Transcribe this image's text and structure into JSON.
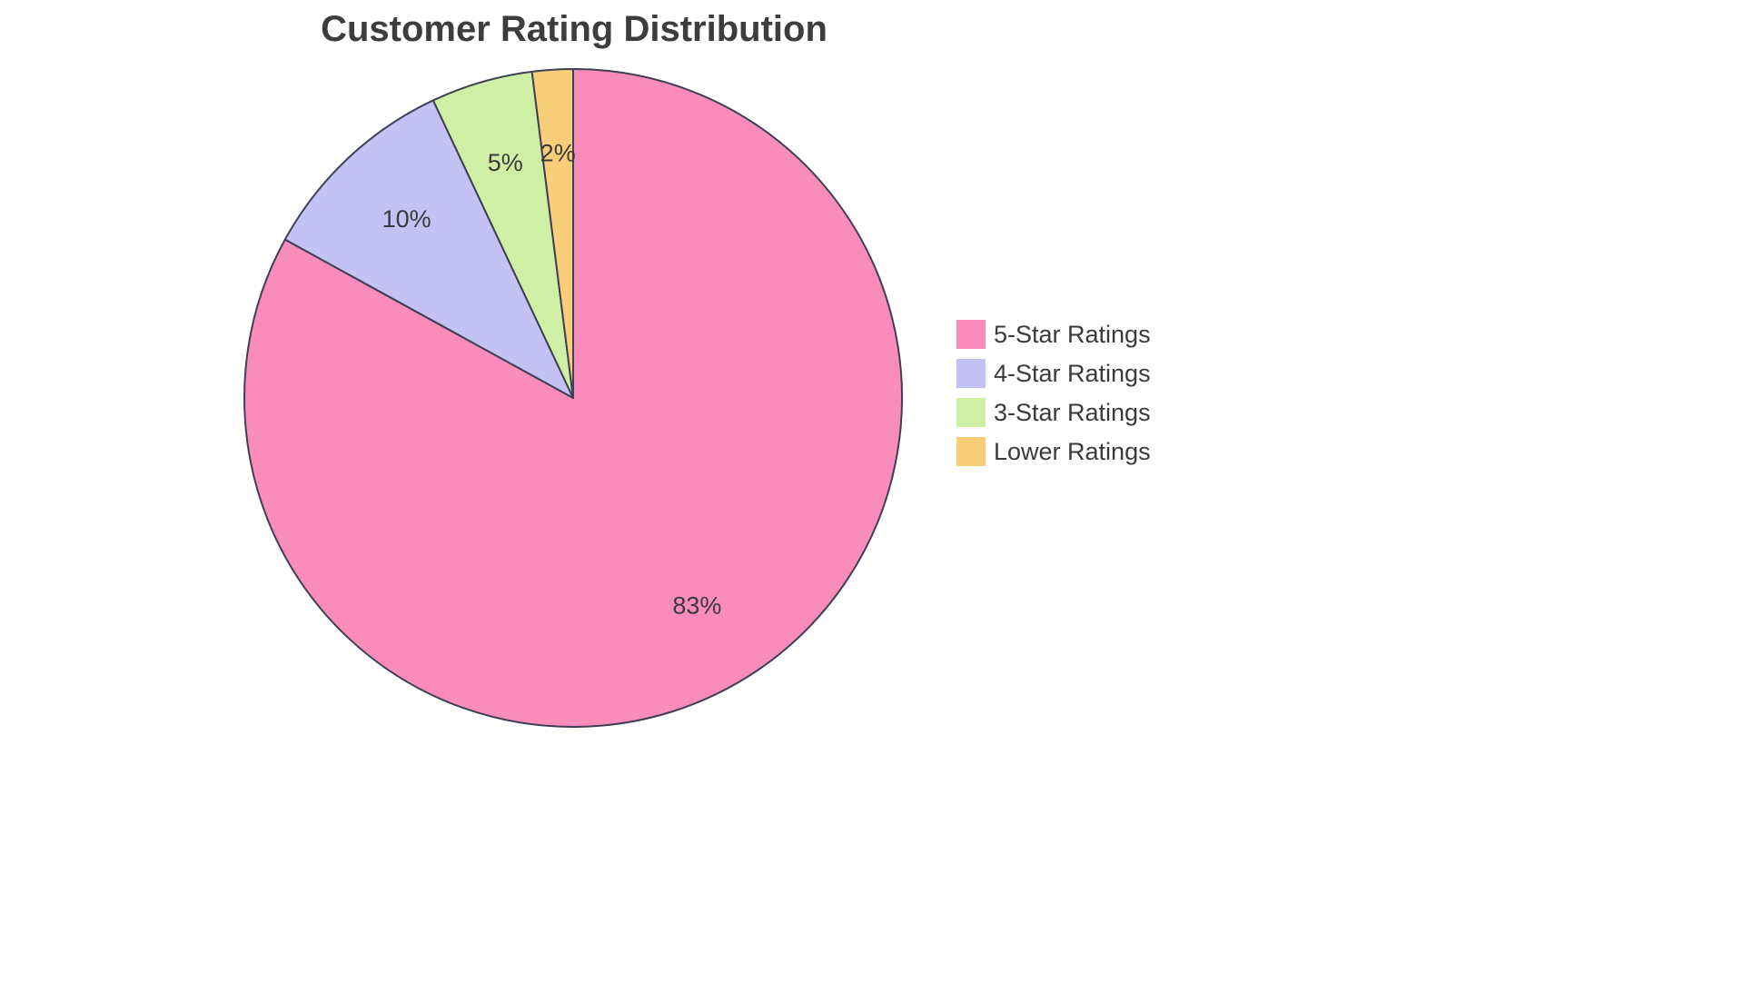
{
  "title": "Customer Rating Distribution",
  "chart_data": {
    "type": "pie",
    "title": "Customer Rating Distribution",
    "categories": [
      "5-Star Ratings",
      "4-Star Ratings",
      "3-Star Ratings",
      "Lower Ratings"
    ],
    "values": [
      83,
      10,
      5,
      2
    ],
    "percent_labels": [
      "83%",
      "10%",
      "5%",
      "2%"
    ],
    "colors": [
      "#F98CBB",
      "#C4C2F4",
      "#CFF0A4",
      "#F9CE79"
    ],
    "stroke_color": "#3F3F56",
    "start_angle_deg": 0,
    "direction": "clockwise",
    "legend_position": "right",
    "background": "#ffffff"
  },
  "legend": {
    "items": [
      {
        "label": "5-Star Ratings",
        "color": "#F98CBB"
      },
      {
        "label": "4-Star Ratings",
        "color": "#C4C2F4"
      },
      {
        "label": "3-Star Ratings",
        "color": "#CFF0A4"
      },
      {
        "label": "Lower Ratings",
        "color": "#F9CE79"
      }
    ]
  }
}
